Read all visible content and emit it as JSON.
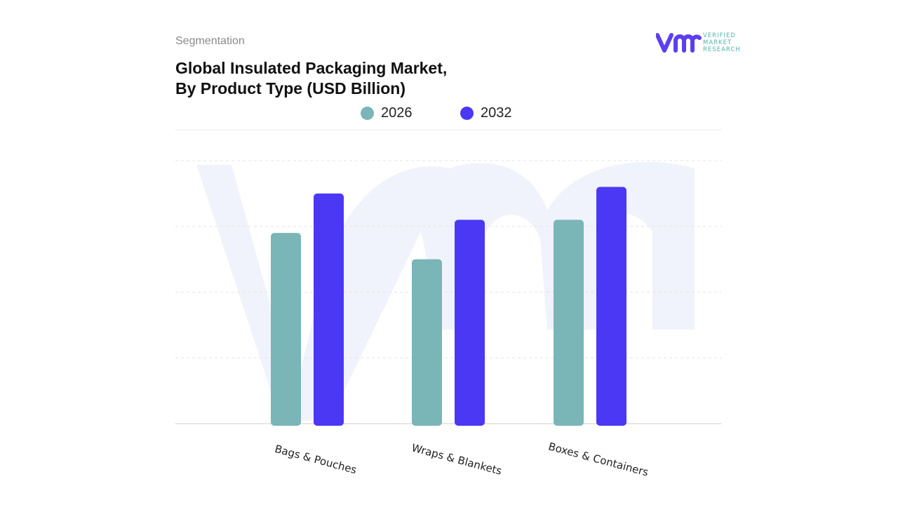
{
  "header": {
    "section": "Segmentation",
    "title_line1": "Global Insulated Packaging Market,",
    "title_line2": "By Product Type (USD Billion)"
  },
  "logo": {
    "text": [
      "VERIFIED",
      "MARKET",
      "RESEARCH"
    ],
    "color": "#5b3ff0",
    "text_color": "#4fb3b0"
  },
  "chart_data": {
    "type": "bar",
    "title": "Global Insulated Packaging Market, By Product Type (USD Billion)",
    "categories": [
      "Bags & Pouches",
      "Wraps & Blankets",
      "Boxes & Containers"
    ],
    "series": [
      {
        "name": "2026",
        "color": "#7ab5b8",
        "values": [
          2.9,
          2.5,
          3.1
        ]
      },
      {
        "name": "2032",
        "color": "#4b38f5",
        "values": [
          3.5,
          3.1,
          3.6
        ]
      }
    ],
    "ylim": [
      0,
      4
    ],
    "y_tick_labels_shown": false,
    "grid": true,
    "legend": "top-center",
    "xlabel": "",
    "ylabel": ""
  }
}
